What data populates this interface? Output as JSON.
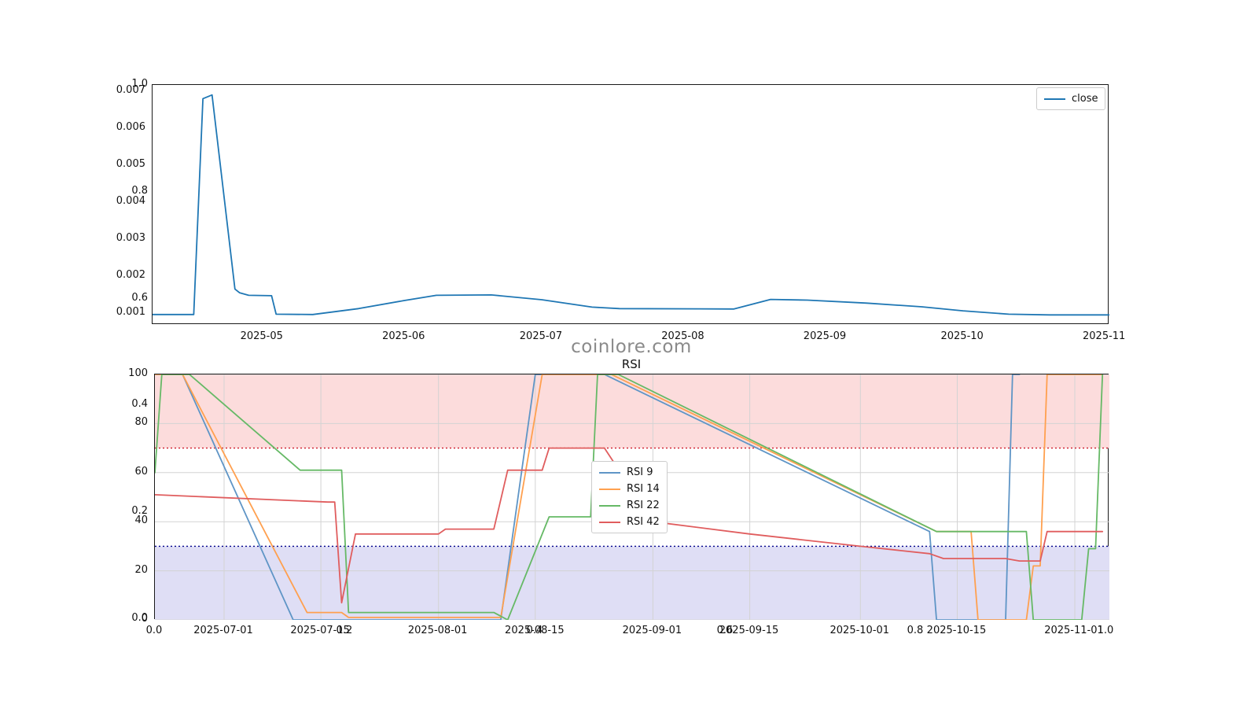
{
  "watermark": "coinlore.com",
  "colors": {
    "close_line": "#1f77b4",
    "rsi9": "#5f95c6",
    "rsi14": "#ffa04f",
    "rsi22": "#66b966",
    "rsi42": "#e05d5e",
    "overbought_band": "#fcdcdc",
    "oversold_band": "#dfdef5",
    "overbought_line": "#cf1b2b",
    "oversold_line": "#00008b",
    "grid": "#d3d3d3"
  },
  "overlay_axis": {
    "y_ticks": [
      "1.0",
      "0.8",
      "0.6",
      "0.4",
      "0.2",
      "0.0"
    ],
    "x_ticks": [
      "0.0",
      "0.2",
      "0.4",
      "0.6",
      "0.8",
      "1.0"
    ]
  },
  "chart_data": [
    {
      "type": "line",
      "name": "price",
      "title": "",
      "xlim": [
        "2025-04-07",
        "2025-11-02"
      ],
      "ylim": [
        0.00068,
        0.00717
      ],
      "grid": false,
      "legend_position": "top-right",
      "x_ticks": [
        "2025-05",
        "2025-06",
        "2025-07",
        "2025-08",
        "2025-09",
        "2025-10",
        "2025-11"
      ],
      "y_ticks": [
        "0.001",
        "0.002",
        "0.003",
        "0.004",
        "0.005",
        "0.006",
        "0.007"
      ],
      "series": [
        {
          "name": "close",
          "color": "#1f77b4",
          "points": [
            [
              "2025-04-07",
              0.00096
            ],
            [
              "2025-04-16",
              0.00096
            ],
            [
              "2025-04-18",
              0.0068
            ],
            [
              "2025-04-20",
              0.0069
            ],
            [
              "2025-04-25",
              0.00165
            ],
            [
              "2025-04-26",
              0.00155
            ],
            [
              "2025-04-28",
              0.00148
            ],
            [
              "2025-05-03",
              0.00147
            ],
            [
              "2025-05-04",
              0.00097
            ],
            [
              "2025-05-12",
              0.00096
            ],
            [
              "2025-05-22",
              0.00112
            ],
            [
              "2025-06-01",
              0.00134
            ],
            [
              "2025-06-08",
              0.00148
            ],
            [
              "2025-06-20",
              0.00149
            ],
            [
              "2025-07-01",
              0.00136
            ],
            [
              "2025-07-12",
              0.00116
            ],
            [
              "2025-07-18",
              0.00112
            ],
            [
              "2025-08-12",
              0.00111
            ],
            [
              "2025-08-20",
              0.00137
            ],
            [
              "2025-08-28",
              0.00135
            ],
            [
              "2025-09-10",
              0.00127
            ],
            [
              "2025-09-22",
              0.00117
            ],
            [
              "2025-10-01",
              0.00106
            ],
            [
              "2025-10-11",
              0.00097
            ],
            [
              "2025-10-20",
              0.00095
            ],
            [
              "2025-11-02",
              0.00095
            ]
          ]
        }
      ]
    },
    {
      "type": "line",
      "name": "rsi",
      "title": "RSI",
      "xlim": [
        "2025-06-21",
        "2025-11-06"
      ],
      "ylim": [
        0,
        100
      ],
      "grid": true,
      "legend_position": "center",
      "x_ticks": [
        "2025-07-01",
        "2025-07-15",
        "2025-08-01",
        "2025-08-15",
        "2025-09-01",
        "2025-09-15",
        "2025-10-01",
        "2025-10-15",
        "2025-11-01"
      ],
      "y_ticks": [
        "0",
        "20",
        "40",
        "60",
        "80",
        "100"
      ],
      "bands": [
        {
          "from": 70,
          "to": 100,
          "color": "#fcdcdc",
          "name": "overbought-band"
        },
        {
          "from": 0,
          "to": 30,
          "color": "#dfdef5",
          "name": "oversold-band"
        }
      ],
      "ref_lines": [
        {
          "y": 70,
          "color": "#cf1b2b",
          "name": "overbought-line"
        },
        {
          "y": 30,
          "color": "#00008b",
          "name": "oversold-line"
        }
      ],
      "series": [
        {
          "name": "RSI 9",
          "color": "#5f95c6",
          "points": [
            [
              "2025-06-21",
              100
            ],
            [
              "2025-06-25",
              100
            ],
            [
              "2025-07-11",
              0
            ],
            [
              "2025-08-10",
              0
            ],
            [
              "2025-08-15",
              100
            ],
            [
              "2025-08-25",
              100
            ],
            [
              "2025-10-11",
              36
            ],
            [
              "2025-10-12",
              0
            ],
            [
              "2025-10-22",
              0
            ],
            [
              "2025-10-23",
              100
            ],
            [
              "2025-10-24",
              100
            ]
          ]
        },
        {
          "name": "RSI 14",
          "color": "#ffa04f",
          "points": [
            [
              "2025-06-21",
              100
            ],
            [
              "2025-06-25",
              100
            ],
            [
              "2025-07-13",
              3
            ],
            [
              "2025-07-18",
              3
            ],
            [
              "2025-07-19",
              1
            ],
            [
              "2025-08-10",
              1
            ],
            [
              "2025-08-16",
              100
            ],
            [
              "2025-08-26",
              100
            ],
            [
              "2025-10-12",
              36
            ],
            [
              "2025-10-17",
              36
            ],
            [
              "2025-10-18",
              0
            ],
            [
              "2025-10-25",
              0
            ],
            [
              "2025-10-26",
              22
            ],
            [
              "2025-10-27",
              22
            ],
            [
              "2025-10-28",
              100
            ],
            [
              "2025-11-05",
              100
            ]
          ]
        },
        {
          "name": "RSI 22",
          "color": "#66b966",
          "points": [
            [
              "2025-06-21",
              60
            ],
            [
              "2025-06-22",
              100
            ],
            [
              "2025-06-26",
              100
            ],
            [
              "2025-07-12",
              61
            ],
            [
              "2025-07-18",
              61
            ],
            [
              "2025-07-19",
              3
            ],
            [
              "2025-08-09",
              3
            ],
            [
              "2025-08-11",
              0
            ],
            [
              "2025-08-17",
              42
            ],
            [
              "2025-08-23",
              42
            ],
            [
              "2025-08-24",
              100
            ],
            [
              "2025-08-27",
              100
            ],
            [
              "2025-10-12",
              36
            ],
            [
              "2025-10-25",
              36
            ],
            [
              "2025-10-26",
              0
            ],
            [
              "2025-11-02",
              0
            ],
            [
              "2025-11-03",
              29
            ],
            [
              "2025-11-04",
              29
            ],
            [
              "2025-11-05",
              100
            ]
          ]
        },
        {
          "name": "RSI 42",
          "color": "#e05d5e",
          "points": [
            [
              "2025-06-21",
              51
            ],
            [
              "2025-07-16",
              48
            ],
            [
              "2025-07-17",
              48
            ],
            [
              "2025-07-18",
              7
            ],
            [
              "2025-07-20",
              35
            ],
            [
              "2025-08-01",
              35
            ],
            [
              "2025-08-02",
              37
            ],
            [
              "2025-08-09",
              37
            ],
            [
              "2025-08-11",
              61
            ],
            [
              "2025-08-16",
              61
            ],
            [
              "2025-08-17",
              70
            ],
            [
              "2025-08-25",
              70
            ],
            [
              "2025-09-01",
              40
            ],
            [
              "2025-09-15",
              35
            ],
            [
              "2025-10-01",
              30
            ],
            [
              "2025-10-11",
              27
            ],
            [
              "2025-10-13",
              25
            ],
            [
              "2025-10-22",
              25
            ],
            [
              "2025-10-24",
              24
            ],
            [
              "2025-10-27",
              24
            ],
            [
              "2025-10-28",
              36
            ],
            [
              "2025-11-05",
              36
            ]
          ]
        }
      ]
    }
  ]
}
